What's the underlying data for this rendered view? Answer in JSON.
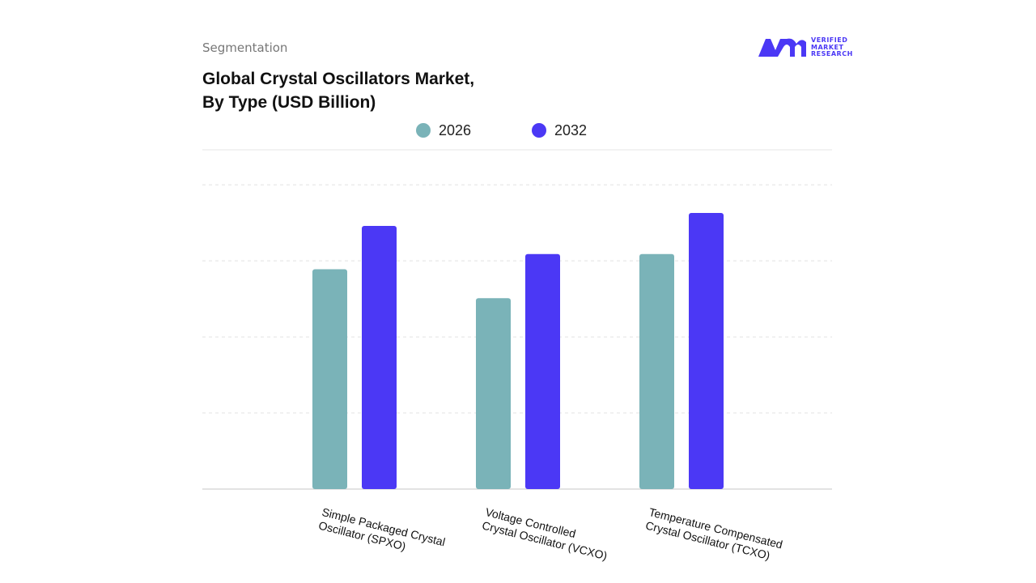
{
  "header": {
    "section": "Segmentation",
    "logo_text": "VERIFIED\nMARKET\nRESEARCH"
  },
  "chart_data": {
    "type": "bar",
    "title": "Global Crystal Oscillators Market,\nBy Type (USD Billion)",
    "categories": [
      "Simple Packaged Crystal\nOscillator (SPXO)",
      "Voltage Controlled\nCrystal Oscillator (VCXO)",
      "Temperature Compensated\nCrystal Oscillator (TCXO)"
    ],
    "series": [
      {
        "name": "2026",
        "color": "#7ab3b8",
        "values": [
          2.89,
          2.51,
          3.09
        ]
      },
      {
        "name": "2032",
        "color": "#4b38f5",
        "values": [
          3.46,
          3.09,
          3.63
        ]
      }
    ],
    "ylim": [
      0,
      4.46
    ],
    "gridlines": [
      1,
      2,
      3,
      4
    ],
    "grid": true
  }
}
